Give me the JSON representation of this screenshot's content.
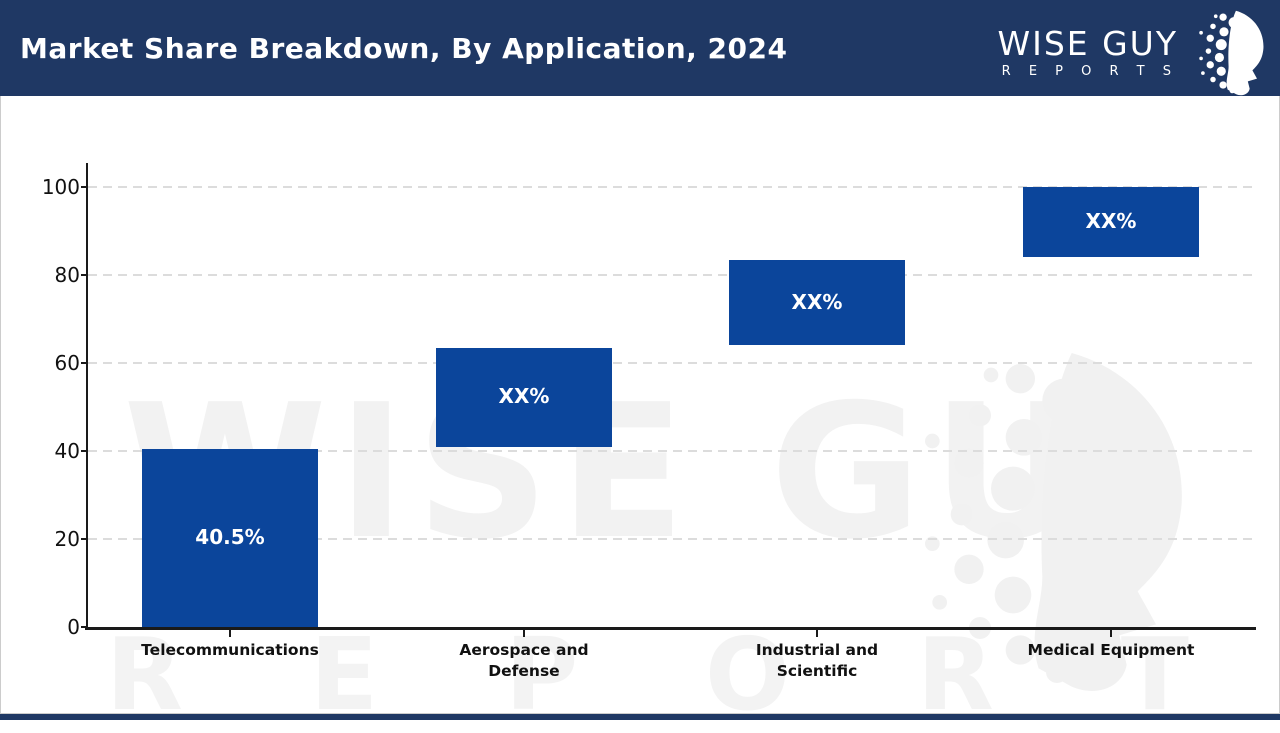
{
  "header": {
    "title": "Market Share Breakdown, By Application, 2024",
    "logo_line1": "WISE GUY",
    "logo_line2": "R E P O R T S"
  },
  "watermark": {
    "line1": "WISE GU",
    "line2": "R E P O R T S"
  },
  "chart_data": {
    "type": "bar",
    "subtype": "waterfall",
    "title": "Market Share Breakdown, By Application, 2024",
    "categories": [
      "Telecommunications",
      "Aerospace and Defense",
      "Industrial and Scientific",
      "Medical Equipment"
    ],
    "categories_display": [
      "Telecommunications",
      "Aerospace and\nDefense",
      "Industrial and\nScientific",
      "Medical Equipment"
    ],
    "bars": [
      {
        "category": "Telecommunications",
        "start": 0,
        "end": 40.5,
        "value": 40.5,
        "label": "40.5%"
      },
      {
        "category": "Aerospace and Defense",
        "start": 41,
        "end": 63.5,
        "value": 22.5,
        "label": "XX%"
      },
      {
        "category": "Industrial and Scientific",
        "start": 64,
        "end": 83.5,
        "value": 19.5,
        "label": "XX%"
      },
      {
        "category": "Medical Equipment",
        "start": 84,
        "end": 100,
        "value": 16,
        "label": "XX%"
      }
    ],
    "xlabel": "",
    "ylabel": "",
    "ylim": [
      0,
      100
    ],
    "yticks": [
      "0",
      "20",
      "40",
      "60",
      "80",
      "100"
    ],
    "grid": "horizontal-dashed",
    "legend": "none",
    "bar_color": "#0b459b",
    "bar_label_color": "#ffffff"
  },
  "colors": {
    "header_bg": "#1f3864",
    "footer_bg": "#1f3864",
    "bar": "#0b459b",
    "grid": "#dcdcdc",
    "axis": "#1a1a1a",
    "border": "#cccccc",
    "watermark": "#f2f2f2"
  }
}
